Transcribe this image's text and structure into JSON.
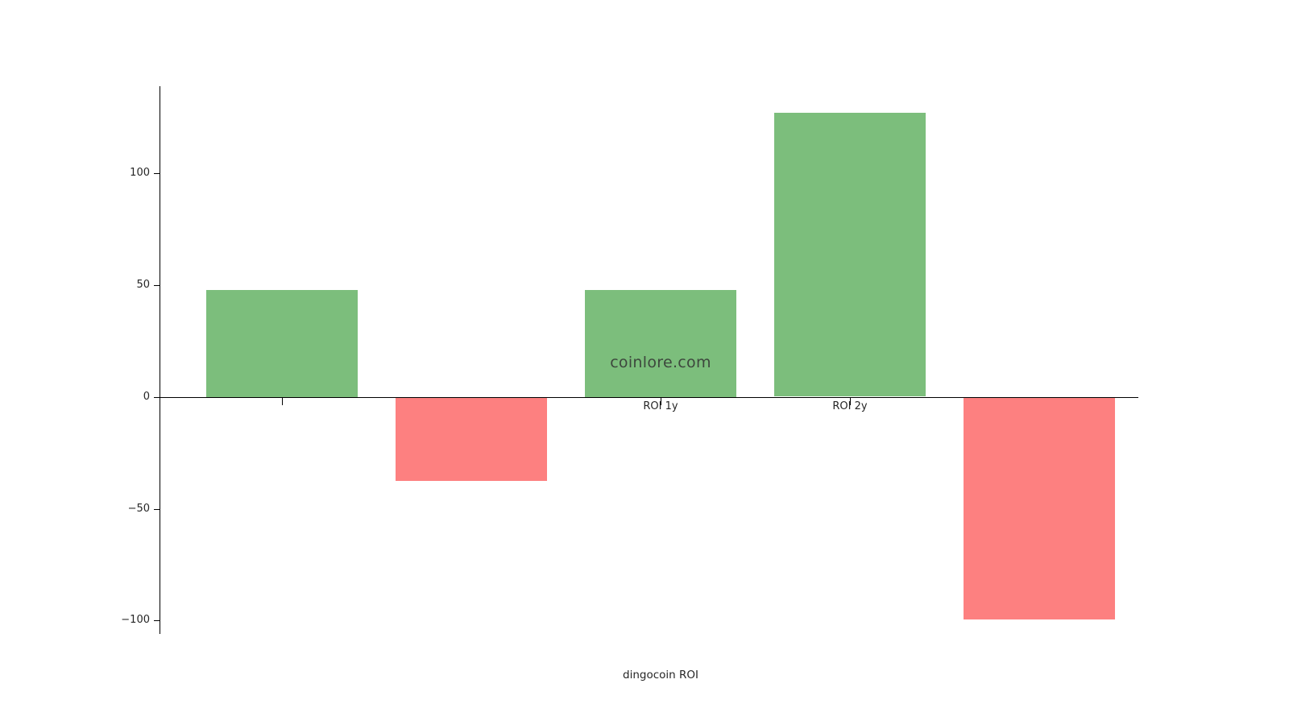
{
  "watermark": "coinlore.com",
  "chart_data": {
    "type": "bar",
    "title": "dingocoin ROI",
    "xlabel": "dingocoin ROI",
    "ylabel": "",
    "categories": [
      "",
      "",
      "ROI 1y",
      "ROI 2y",
      ""
    ],
    "values": [
      48,
      -37,
      48,
      127,
      -99
    ],
    "positive_color": "#7cbe7c",
    "negative_color": "#fd8080",
    "bar_colors": [
      "#7cbe7c",
      "#fd8080",
      "#7cbe7c",
      "#7cbe7c",
      "#fd8080"
    ],
    "yticks": [
      -100,
      -50,
      0,
      50,
      100
    ],
    "ylim": [
      -106,
      139
    ],
    "grid": false,
    "legend_position": "none",
    "axis_color": "#000000",
    "tick_label_color": "#262626"
  }
}
